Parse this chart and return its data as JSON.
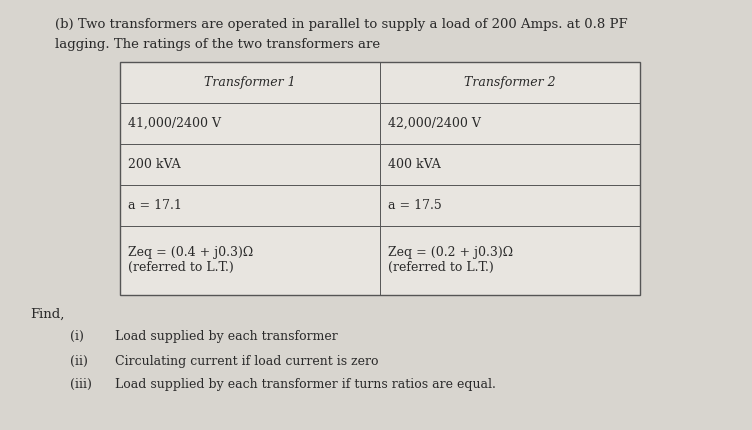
{
  "title_line1": "(b) Two transformers are operated in parallel to supply a load of 200 Amps. at 0.8 PF",
  "title_line2": "lagging. The ratings of the two transformers are",
  "table_headers": [
    "Transformer 1",
    "Transformer 2"
  ],
  "table_rows": [
    [
      "41,000/2400 V",
      "42,000/2400 V"
    ],
    [
      "200 kVA",
      "400 kVA"
    ],
    [
      "a = 17.1",
      "a = 17.5"
    ],
    [
      "Zeq = (0.4 + j0.3)Ω\n(referred to L.T.)",
      "Zeq = (0.2 + j0.3)Ω\n(referred to L.T.)"
    ]
  ],
  "find_text": "Find,",
  "items": [
    [
      "(i)",
      "Load supplied by each transformer"
    ],
    [
      "(ii)",
      "Circulating current if load current is zero"
    ],
    [
      "(iii)",
      "Load supplied by each transformer if turns ratios are equal."
    ]
  ],
  "bg_color": "#d8d5cf",
  "text_color": "#2a2a2a",
  "table_line_color": "#555555",
  "table_bg": "#e8e5e0",
  "font_size_title": 9.5,
  "font_size_table": 9.0,
  "font_size_find": 9.5,
  "font_size_items": 9.0
}
